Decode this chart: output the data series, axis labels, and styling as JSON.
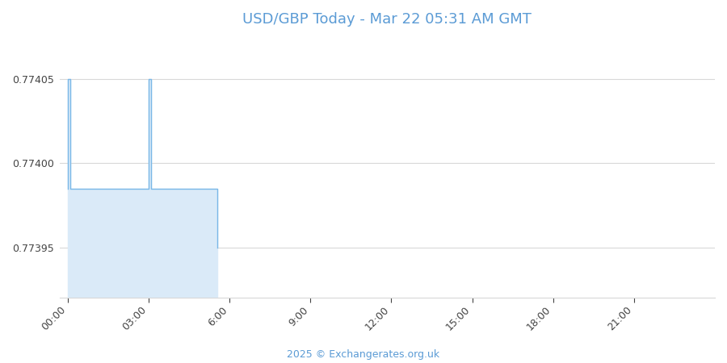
{
  "title": "USD/GBP Today - Mar 22 05:31 AM GMT",
  "title_color": "#5b9bd5",
  "footer": "2025 © Exchangerates.org.uk",
  "footer_color": "#5b9bd5",
  "ylim": [
    0.77392,
    0.774075
  ],
  "yticks": [
    0.77395,
    0.774,
    0.77405
  ],
  "xtick_labels": [
    "00:00",
    "03:00",
    "6:00",
    "9:00",
    "12:00",
    "15:00",
    "18:00",
    "21:00"
  ],
  "xtick_positions": [
    0,
    3,
    6,
    9,
    12,
    15,
    18,
    21
  ],
  "xlim": [
    -0.3,
    24
  ],
  "line_color": "#7ab8e8",
  "fill_color": "#daeaf8",
  "background_color": "#ffffff",
  "grid_color": "#d8d8d8",
  "x_data": [
    0.0,
    0.0,
    0.08,
    0.08,
    3.0,
    3.0,
    3.08,
    3.08,
    5.55,
    5.55
  ],
  "y_data": [
    0.773985,
    0.77405,
    0.77405,
    0.773985,
    0.773985,
    0.77405,
    0.77405,
    0.773985,
    0.773985,
    0.77395
  ]
}
